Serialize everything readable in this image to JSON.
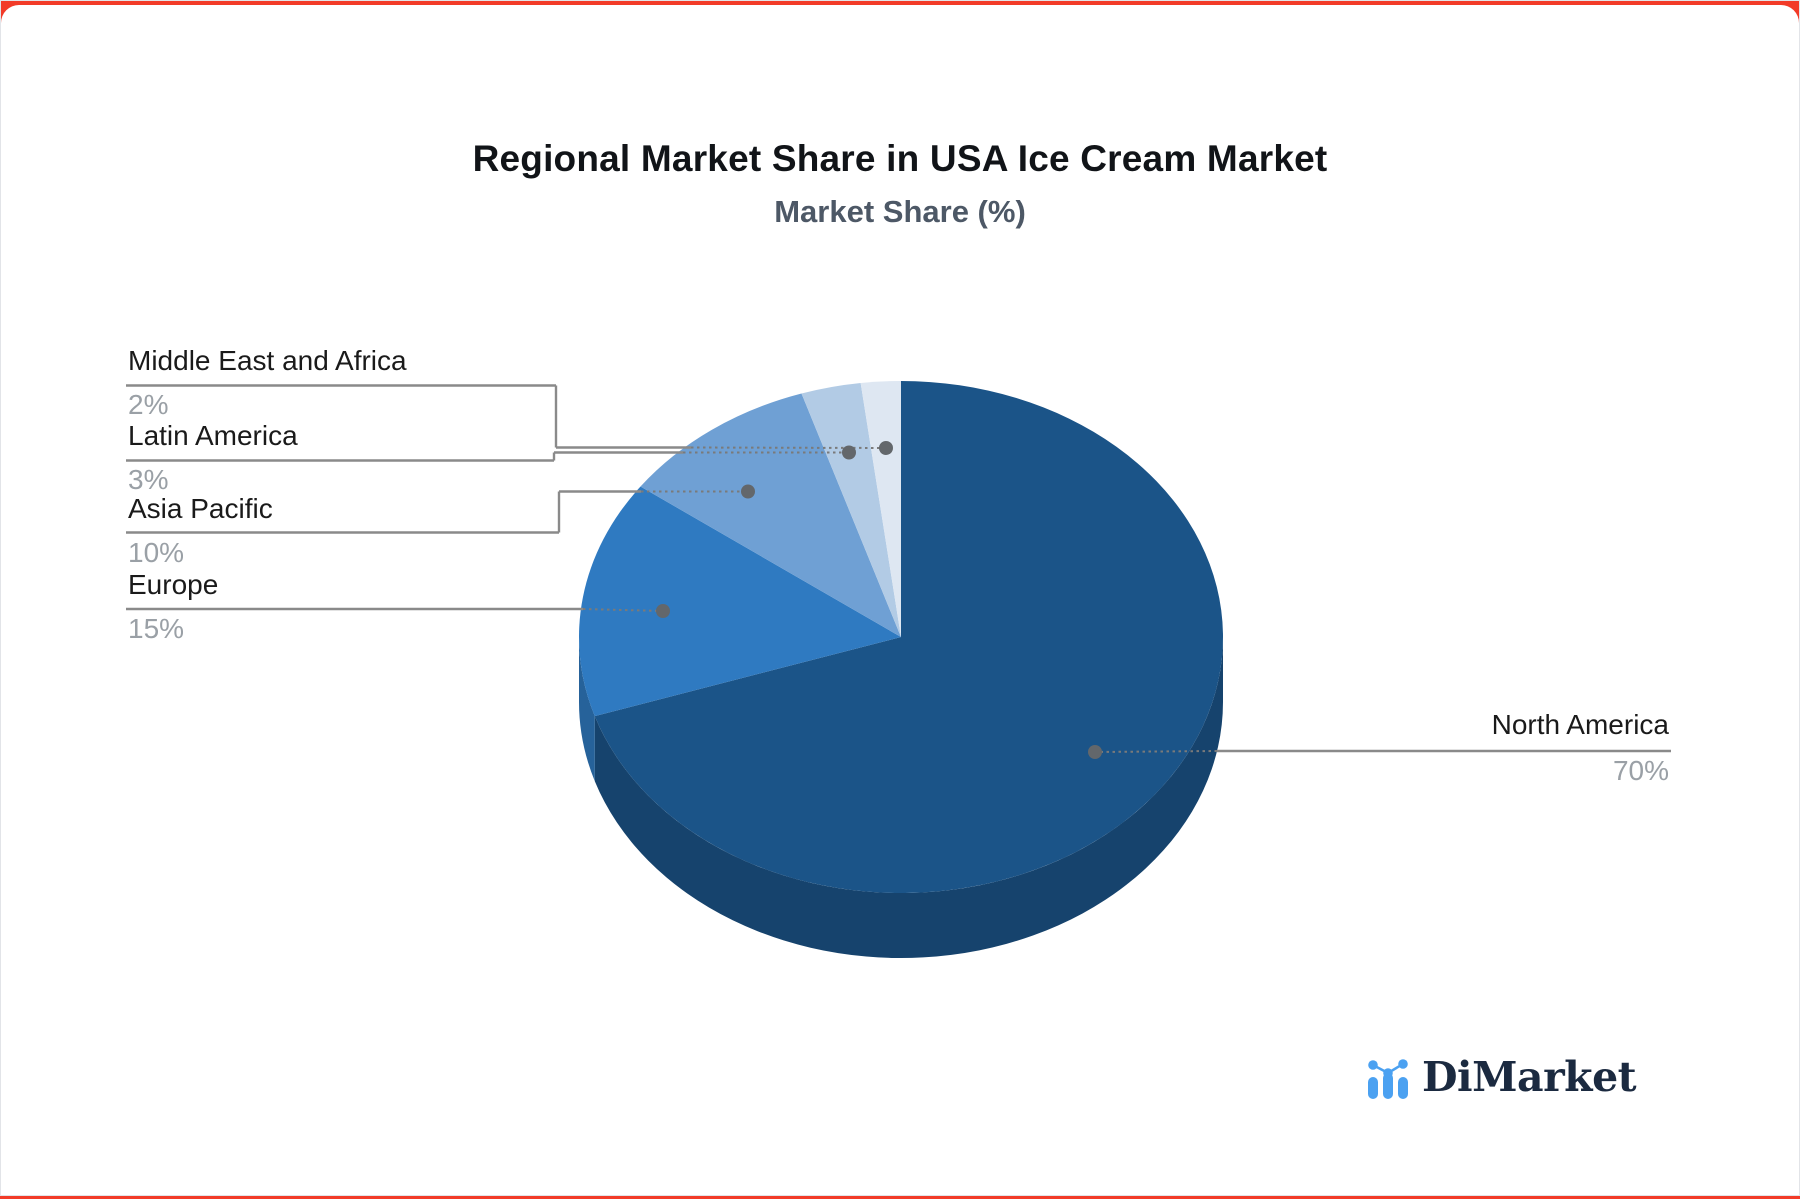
{
  "page": {
    "top_bar_color": "#f23b28",
    "background": "#ffffff",
    "border_color": "#e2e4e8"
  },
  "header": {
    "title": "Regional Market Share in USA Ice Cream Market",
    "subtitle": "Market Share (%)"
  },
  "chart_data": {
    "type": "pie",
    "style": "3d",
    "title": "Regional Market Share in USA Ice Cream Market",
    "subtitle": "Market Share (%)",
    "unit": "%",
    "direction": "clockwise",
    "start_angle": "top",
    "categories": [
      "North America",
      "Europe",
      "Asia Pacific",
      "Latin America",
      "Middle East and Africa"
    ],
    "values": [
      70,
      15,
      10,
      3,
      2
    ],
    "value_labels": [
      "70%",
      "15%",
      "10%",
      "3%",
      "2%"
    ],
    "colors": [
      "#1B5488",
      "#2F7AC1",
      "#6FA0D4",
      "#B2CBE5",
      "#DEE7F2"
    ],
    "legend_position": "callout-labels",
    "callout_line_color": "#8a8a8a",
    "label_color": "#1a1a1a",
    "value_color": "#9aa0a6"
  },
  "branding": {
    "logo_text": "DiMarket",
    "logo_icon": "bar-chart-logo-icon",
    "icon_color": "#4BA1F1",
    "text_color": "#1b2a40"
  }
}
